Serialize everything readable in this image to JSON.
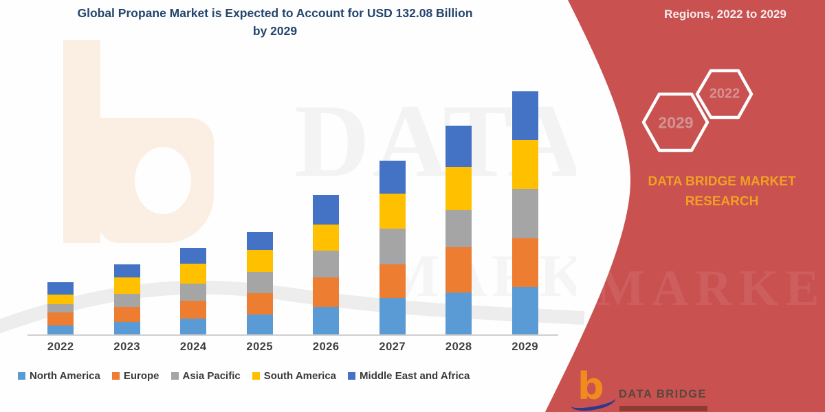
{
  "title": "Global Propane Market is Expected to Account for USD 132.08 Billion by 2029",
  "watermark": {
    "line1": "DATA BRIDGE",
    "line2": "MARKET RESEARCH"
  },
  "side_panel": {
    "heading": "Regions, 2022 to 2029",
    "hexagon_large_label": "2029",
    "hexagon_small_label": "2022",
    "brand": "DATA BRIDGE MARKET RESEARCH",
    "panel_color": "#c95150",
    "brand_color": "#f0a124"
  },
  "footer_logo": {
    "glyph": "b",
    "name": "DATA BRIDGE"
  },
  "chart_data": {
    "type": "bar",
    "stacked": true,
    "title": "Global Propane Market is Expected to Account for USD 132.08 Billion by 2029",
    "unit": "USD Billion",
    "categories": [
      "2022",
      "2023",
      "2024",
      "2025",
      "2026",
      "2027",
      "2028",
      "2029"
    ],
    "series": [
      {
        "name": "North America",
        "color": "#5B9BD5",
        "values": [
          4.9,
          6.8,
          8.7,
          11.0,
          15.1,
          19.7,
          22.7,
          25.7
        ]
      },
      {
        "name": "Europe",
        "color": "#ED7D31",
        "values": [
          7.2,
          8.3,
          9.5,
          11.4,
          15.9,
          18.2,
          24.6,
          26.5
        ]
      },
      {
        "name": "Asia Pacific",
        "color": "#A5A5A5",
        "values": [
          4.2,
          6.8,
          9.5,
          11.4,
          14.4,
          19.7,
          20.1,
          26.9
        ]
      },
      {
        "name": "South America",
        "color": "#FFC000",
        "values": [
          5.3,
          9.1,
          10.6,
          12.1,
          14.4,
          18.9,
          23.5,
          26.5
        ]
      },
      {
        "name": "Middle East and Africa",
        "color": "#4472C4",
        "values": [
          6.8,
          7.2,
          8.7,
          9.8,
          15.9,
          17.8,
          22.7,
          26.48
        ]
      }
    ],
    "totals_by_year": [
      28.4,
      38.2,
      47.0,
      55.7,
      75.7,
      94.3,
      113.6,
      132.08
    ],
    "ylim": [
      0,
      140
    ],
    "grid": false,
    "y_axis_visible": false,
    "legend_position": "bottom"
  }
}
